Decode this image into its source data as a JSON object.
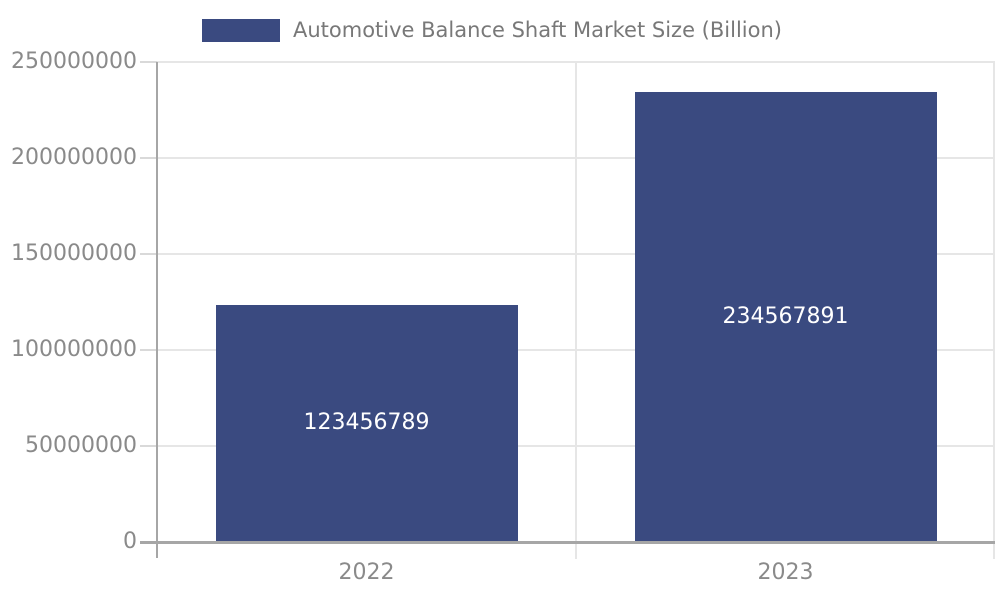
{
  "legend": {
    "series_label": "Automotive Balance Shaft Market Size (Billion)"
  },
  "chart_data": {
    "type": "bar",
    "title": "Automotive Balance Shaft Market Size (Billion)",
    "categories": [
      "2022",
      "2023"
    ],
    "series": [
      {
        "name": "Automotive Balance Shaft Market Size (Billion)",
        "values": [
          123456789,
          234567891
        ]
      }
    ],
    "data_labels": [
      "123456789",
      "234567891"
    ],
    "xlabel": "",
    "ylabel": "",
    "ylim": [
      0,
      250000000
    ],
    "ytick_values": [
      0,
      50000000,
      100000000,
      150000000,
      200000000,
      250000000
    ],
    "ytick_labels": [
      "0",
      "50000000",
      "100000000",
      "150000000",
      "200000000",
      "250000000"
    ],
    "grid": true,
    "legend_position": "top-left",
    "colors": {
      "bar": "#3a4a80",
      "gridline": "#e6e6e6",
      "axis": "#a6a6a6",
      "tick": "#d9d9d9",
      "tick_label": "#8a8a8a",
      "title": "#787878",
      "bar_label": "#ffffff",
      "background": "#ffffff"
    }
  }
}
